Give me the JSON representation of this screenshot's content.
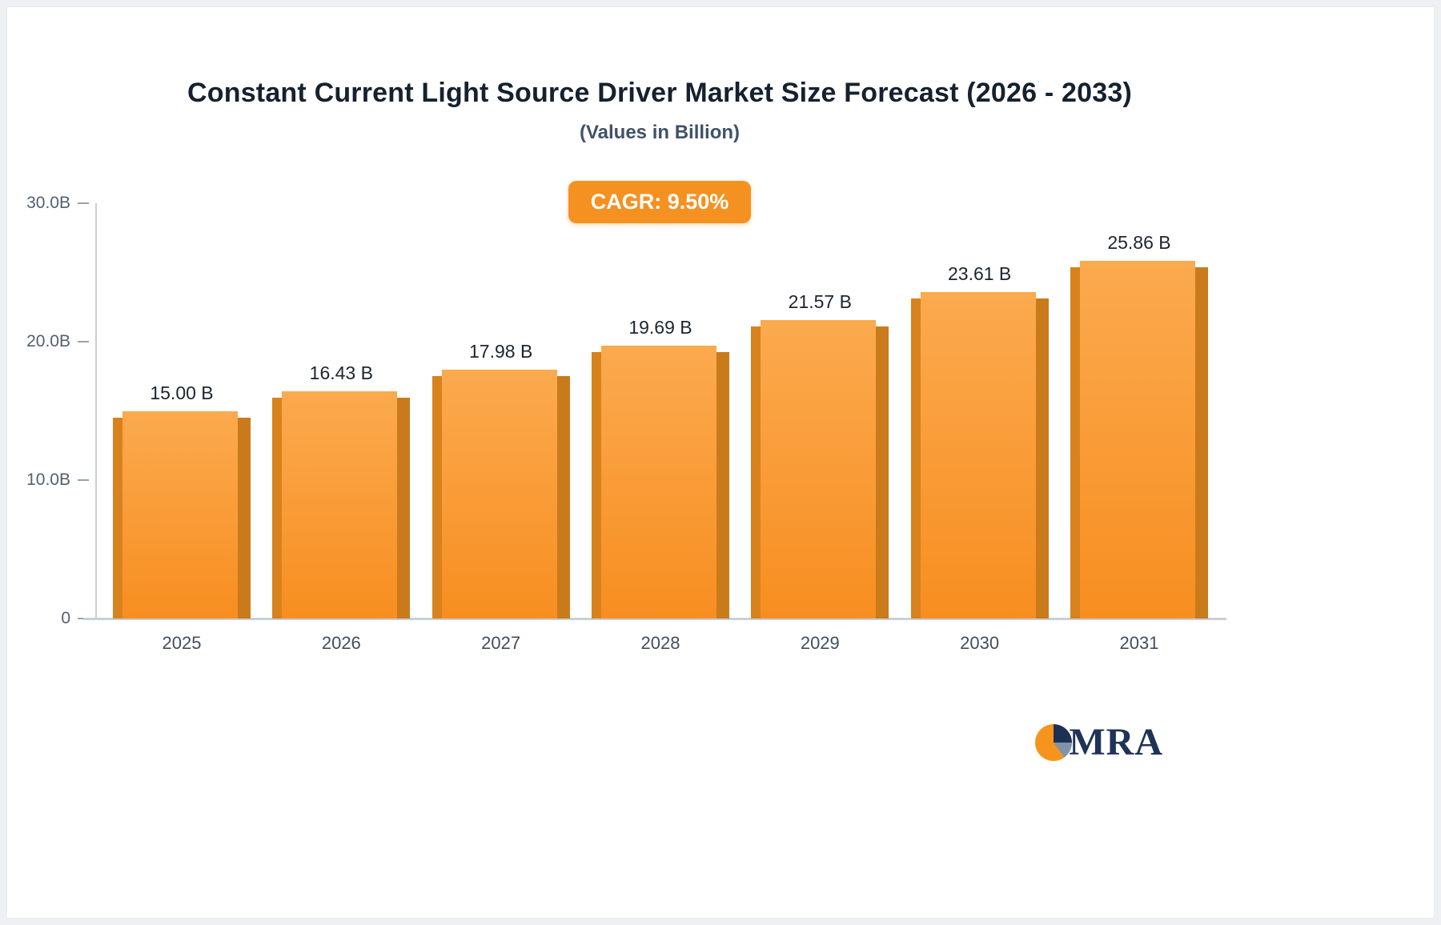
{
  "title": "Constant Current Light Source Driver Market Size Forecast (2026 - 2033)",
  "subtitle": "(Values in Billion)",
  "cagr_badge": "CAGR: 9.50%",
  "logo_text": "MRA",
  "chart_data": {
    "type": "bar",
    "title": "Constant Current Light Source Driver Market Size Forecast (2026 - 2033)",
    "subtitle": "(Values in Billion)",
    "annotation": "CAGR: 9.50%",
    "categories": [
      "2025",
      "2026",
      "2027",
      "2028",
      "2029",
      "2030",
      "2031"
    ],
    "values": [
      15.0,
      16.43,
      17.98,
      19.69,
      21.57,
      23.61,
      25.86
    ],
    "value_labels": [
      "15.00 B",
      "16.43 B",
      "17.98 B",
      "19.69 B",
      "21.57 B",
      "23.61 B",
      "25.86 B"
    ],
    "xlabel": "",
    "ylabel": "",
    "ylim": [
      0,
      30
    ],
    "yticks": [
      {
        "value": 30,
        "label": "30.0B"
      },
      {
        "value": 20,
        "label": "20.0B"
      },
      {
        "value": 10,
        "label": "10.0B"
      },
      {
        "value": 0,
        "label": "0"
      }
    ],
    "grid": false,
    "legend": "none",
    "colors": {
      "bar_top": "#fbaa4f",
      "bar_bottom": "#f78e20",
      "bar_side_left": "#d8821d",
      "bar_side_right": "#c97b1b",
      "badge": "#f59120"
    }
  }
}
